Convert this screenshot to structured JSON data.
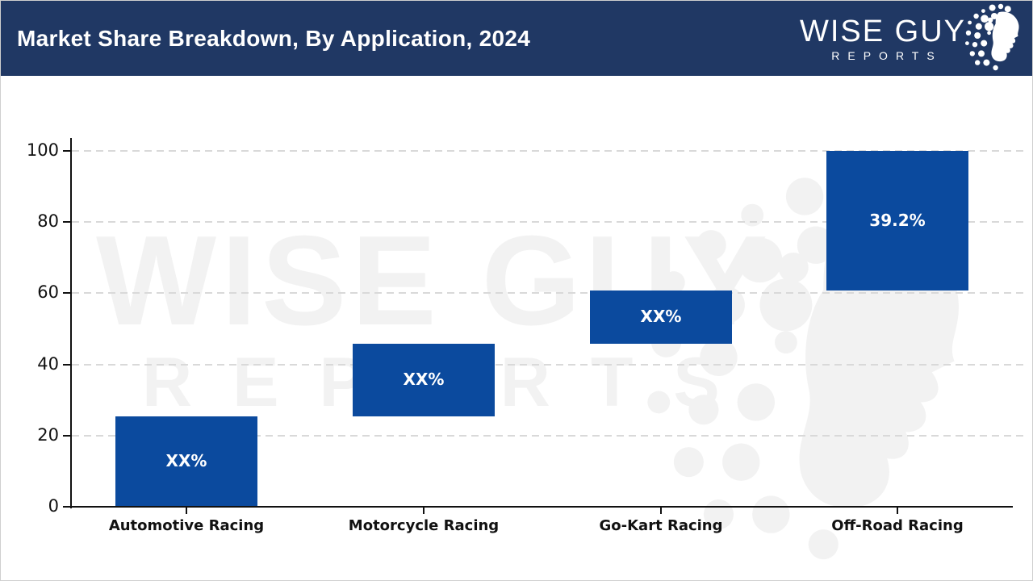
{
  "header": {
    "title": "Market Share Breakdown, By Application, 2024",
    "logo": {
      "name": "Wise Guy Reports",
      "line1": "WISE GUY",
      "line2": "REPORTS"
    }
  },
  "watermark": {
    "line1": "WISE GUY",
    "line2": "REPORTS"
  },
  "colors": {
    "header_bg": "#203864",
    "title_text": "#ffffff",
    "bar": "#0b4a9e",
    "bar_label": "#ffffff",
    "axis": "#111111",
    "tick_label": "#111111",
    "grid": "#d9d9d9",
    "watermark": "#f2f2f2",
    "canvas_border": "#cfcfcf"
  },
  "chart_data": {
    "type": "bar",
    "subtype": "floating-segment waterfall of market share",
    "title": "Market Share Breakdown, By Application, 2024",
    "categories": [
      "Automotive Racing",
      "Motorcycle Racing",
      "Go-Kart Racing",
      "Off-Road Racing"
    ],
    "segments": [
      {
        "category": "Automotive Racing",
        "start": 0,
        "end": 25.4,
        "label": "XX%"
      },
      {
        "category": "Motorcycle Racing",
        "start": 25.4,
        "end": 45.7,
        "label": "XX%"
      },
      {
        "category": "Go-Kart Racing",
        "start": 45.7,
        "end": 60.8,
        "label": "XX%"
      },
      {
        "category": "Off-Road Racing",
        "start": 60.8,
        "end": 100,
        "label": "39.2%"
      }
    ],
    "xlabel": "",
    "ylabel": "",
    "yticks": [
      0,
      20,
      40,
      60,
      80,
      100
    ],
    "ylim": [
      0,
      103.5
    ],
    "grid": {
      "horizontal": true,
      "style": "dashed"
    },
    "legend": "none",
    "bar_value_labels_inside": true
  }
}
